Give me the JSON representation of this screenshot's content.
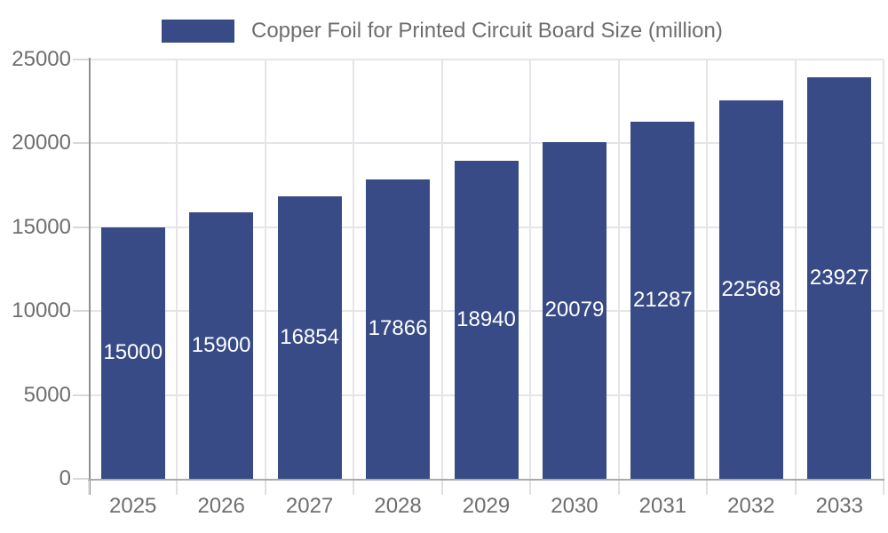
{
  "legend": {
    "label": "Copper Foil for Printed Circuit Board Size (million)"
  },
  "chart_data": {
    "type": "bar",
    "title": "Copper Foil for Printed Circuit Board Size (million)",
    "categories": [
      "2025",
      "2026",
      "2027",
      "2028",
      "2029",
      "2030",
      "2031",
      "2032",
      "2033"
    ],
    "values": [
      15000,
      15900,
      16854,
      17866,
      18940,
      20079,
      21287,
      22568,
      23927
    ],
    "series_name": "Copper Foil for Printed Circuit Board Size (million)",
    "xlabel": "",
    "ylabel": "",
    "ylim": [
      0,
      25000
    ],
    "ytick_step": 5000,
    "yticks": [
      0,
      5000,
      10000,
      15000,
      20000,
      25000
    ],
    "grid": true,
    "legend_position": "top-center",
    "value_label_position": "inside-center"
  },
  "colors": {
    "bar": "#384B87",
    "value_text": "#ffffff",
    "axis_text": "#6e6e6e",
    "grid_line": "#e4e5e9",
    "y_axis_line": "#8f8f8f",
    "x_axis_line": "#a9a9a9",
    "background": "#ffffff"
  }
}
